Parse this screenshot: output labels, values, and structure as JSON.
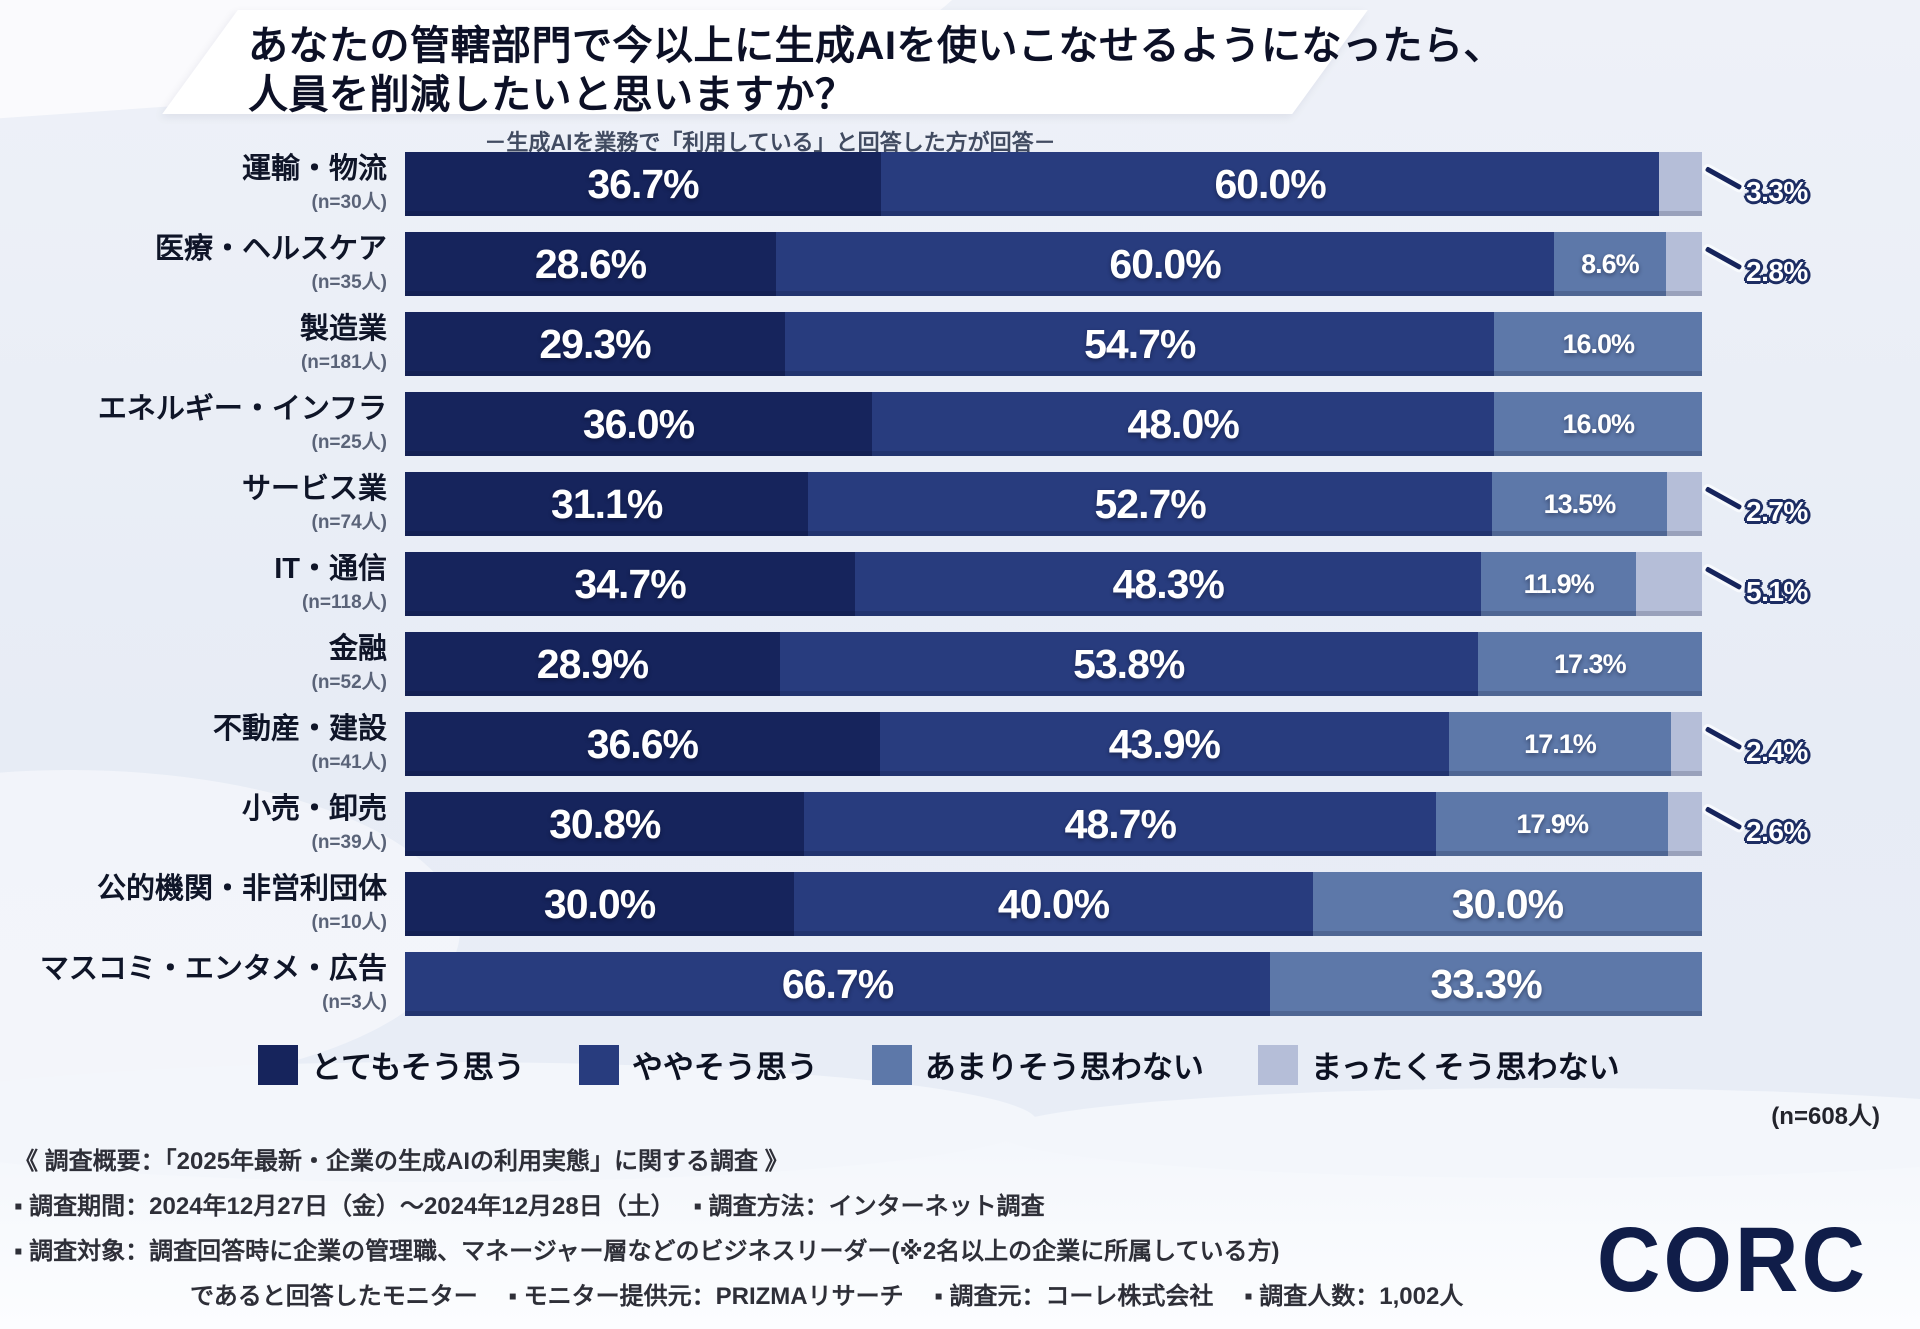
{
  "title": {
    "line1": "あなたの管轄部門で今以上に生成AIを使いこなせるようになったら、",
    "line2": "人員を削減したいと思いますか？"
  },
  "subtitle": "－生成AIを業務で「利用している」と回答した方が回答－",
  "legend": {
    "items": [
      {
        "label": "とてもそう思う",
        "color": "#16245c"
      },
      {
        "label": "ややそう思う",
        "color": "#283c7e"
      },
      {
        "label": "あまりそう思わない",
        "color": "#5d78a9"
      },
      {
        "label": "まったくそう思わない",
        "color": "#b5bed8"
      }
    ],
    "total_note": "(n=608人)"
  },
  "chart_data": {
    "type": "bar",
    "orientation": "horizontal-stacked",
    "title": "あなたの管轄部門で今以上に生成AIを使いこなせるようになったら、人員を削減したいと思いますか？",
    "subtitle": "－生成AIを業務で「利用している」と回答した方が回答－",
    "xlim": [
      0,
      100
    ],
    "unit": "%",
    "categories": [
      "運輸・物流",
      "医療・ヘルスケア",
      "製造業",
      "エネルギー・インフラ",
      "サービス業",
      "IT・通信",
      "金融",
      "不動産・建設",
      "小売・卸売",
      "公的機関・非営利団体",
      "マスコミ・エンタメ・広告"
    ],
    "n_labels": [
      "(n=30人)",
      "(n=35人)",
      "(n=181人)",
      "(n=25人)",
      "(n=74人)",
      "(n=118人)",
      "(n=52人)",
      "(n=41人)",
      "(n=39人)",
      "(n=10人)",
      "(n=3人)"
    ],
    "series": [
      {
        "name": "とてもそう思う",
        "values": [
          36.7,
          28.6,
          29.3,
          36.0,
          31.1,
          34.7,
          28.9,
          36.6,
          30.8,
          30.0,
          0
        ]
      },
      {
        "name": "ややそう思う",
        "values": [
          60.0,
          60.0,
          54.7,
          48.0,
          52.7,
          48.3,
          53.8,
          43.9,
          48.7,
          40.0,
          66.7
        ]
      },
      {
        "name": "あまりそう思わない",
        "values": [
          0,
          8.6,
          16.0,
          16.0,
          13.5,
          11.9,
          17.3,
          17.1,
          17.9,
          30.0,
          33.3
        ]
      },
      {
        "name": "まったくそう思わない",
        "values": [
          3.3,
          2.8,
          0,
          0,
          2.7,
          5.1,
          0,
          2.4,
          2.6,
          0,
          0
        ]
      }
    ],
    "legend_position": "bottom",
    "total_n": "(n=608人)"
  },
  "rows": [
    {
      "category": "運輸・物流",
      "n": "(n=30人)",
      "segments": [
        {
          "series": 0,
          "pct": 36.7,
          "label": "36.7%"
        },
        {
          "series": 1,
          "pct": 60.0,
          "label": "60.0%"
        },
        {
          "series": 3,
          "pct": 3.3,
          "label": "3.3%",
          "callout": true
        }
      ]
    },
    {
      "category": "医療・ヘルスケア",
      "n": "(n=35人)",
      "segments": [
        {
          "series": 0,
          "pct": 28.6,
          "label": "28.6%"
        },
        {
          "series": 1,
          "pct": 60.0,
          "label": "60.0%"
        },
        {
          "series": 2,
          "pct": 8.6,
          "label": "8.6%"
        },
        {
          "series": 3,
          "pct": 2.8,
          "label": "2.8%",
          "callout": true
        }
      ]
    },
    {
      "category": "製造業",
      "n": "(n=181人)",
      "segments": [
        {
          "series": 0,
          "pct": 29.3,
          "label": "29.3%"
        },
        {
          "series": 1,
          "pct": 54.7,
          "label": "54.7%"
        },
        {
          "series": 2,
          "pct": 16.0,
          "label": "16.0%"
        }
      ]
    },
    {
      "category": "エネルギー・インフラ",
      "n": "(n=25人)",
      "segments": [
        {
          "series": 0,
          "pct": 36.0,
          "label": "36.0%"
        },
        {
          "series": 1,
          "pct": 48.0,
          "label": "48.0%"
        },
        {
          "series": 2,
          "pct": 16.0,
          "label": "16.0%"
        }
      ]
    },
    {
      "category": "サービス業",
      "n": "(n=74人)",
      "segments": [
        {
          "series": 0,
          "pct": 31.1,
          "label": "31.1%"
        },
        {
          "series": 1,
          "pct": 52.7,
          "label": "52.7%"
        },
        {
          "series": 2,
          "pct": 13.5,
          "label": "13.5%"
        },
        {
          "series": 3,
          "pct": 2.7,
          "label": "2.7%",
          "callout": true
        }
      ]
    },
    {
      "category": "IT・通信",
      "n": "(n=118人)",
      "segments": [
        {
          "series": 0,
          "pct": 34.7,
          "label": "34.7%"
        },
        {
          "series": 1,
          "pct": 48.3,
          "label": "48.3%"
        },
        {
          "series": 2,
          "pct": 11.9,
          "label": "11.9%"
        },
        {
          "series": 3,
          "pct": 5.1,
          "label": "5.1%",
          "callout": true
        }
      ]
    },
    {
      "category": "金融",
      "n": "(n=52人)",
      "segments": [
        {
          "series": 0,
          "pct": 28.9,
          "label": "28.9%"
        },
        {
          "series": 1,
          "pct": 53.8,
          "label": "53.8%"
        },
        {
          "series": 2,
          "pct": 17.3,
          "label": "17.3%"
        }
      ]
    },
    {
      "category": "不動産・建設",
      "n": "(n=41人)",
      "segments": [
        {
          "series": 0,
          "pct": 36.6,
          "label": "36.6%"
        },
        {
          "series": 1,
          "pct": 43.9,
          "label": "43.9%"
        },
        {
          "series": 2,
          "pct": 17.1,
          "label": "17.1%"
        },
        {
          "series": 3,
          "pct": 2.4,
          "label": "2.4%",
          "callout": true
        }
      ]
    },
    {
      "category": "小売・卸売",
      "n": "(n=39人)",
      "segments": [
        {
          "series": 0,
          "pct": 30.8,
          "label": "30.8%"
        },
        {
          "series": 1,
          "pct": 48.7,
          "label": "48.7%"
        },
        {
          "series": 2,
          "pct": 17.9,
          "label": "17.9%"
        },
        {
          "series": 3,
          "pct": 2.6,
          "label": "2.6%",
          "callout": true
        }
      ]
    },
    {
      "category": "公的機関・非営利団体",
      "n": "(n=10人)",
      "segments": [
        {
          "series": 0,
          "pct": 30.0,
          "label": "30.0%"
        },
        {
          "series": 1,
          "pct": 40.0,
          "label": "40.0%"
        },
        {
          "series": 2,
          "pct": 30.0,
          "label": "30.0%"
        }
      ]
    },
    {
      "category": "マスコミ・エンタメ・広告",
      "n": "(n=3人)",
      "segments": [
        {
          "series": 1,
          "pct": 66.7,
          "label": "66.7%"
        },
        {
          "series": 2,
          "pct": 33.3,
          "label": "33.3%"
        }
      ]
    }
  ],
  "footer": {
    "line1": "《 調査概要：「2025年最新・企業の生成AIの利用実態」に関する調査 》",
    "line2": "▪ 調査期間：2024年12月27日（金）〜2024年12月28日（土）　 ▪ 調査方法：インターネット調査",
    "line3": "▪ 調査対象：調査回答時に企業の管理職、マネージャー層などのビジネスリーダー(※2名以上の企業に所属している方)",
    "line4": "であると回答したモニター　 ▪ モニター提供元：PRIZMAリサーチ　 ▪ 調査元：コーレ株式会社　 ▪ 調査人数：1,002人"
  },
  "logo_text": "CORC"
}
